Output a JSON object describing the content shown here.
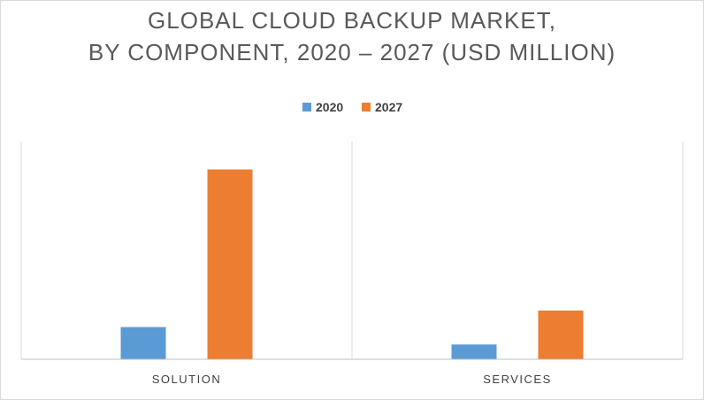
{
  "chart_data": {
    "type": "bar",
    "title": "GLOBAL CLOUD BACKUP MARKET,\nBY COMPONENT, 2020 – 2027 (USD MILLION)",
    "title_lines": [
      "GLOBAL CLOUD BACKUP MARKET,",
      "BY COMPONENT, 2020 – 2027 (USD MILLION)"
    ],
    "categories": [
      "SOLUTION",
      "SERVICES"
    ],
    "series": [
      {
        "name": "2020",
        "color": "#5b9bd5",
        "values": [
          37,
          17
        ]
      },
      {
        "name": "2027",
        "color": "#ed7d31",
        "values": [
          218,
          56
        ]
      }
    ],
    "xlabel": "",
    "ylabel": "",
    "ylim": [
      0,
      250
    ],
    "legend_position": "top-center",
    "grid": false,
    "y_axis_shown": false
  }
}
